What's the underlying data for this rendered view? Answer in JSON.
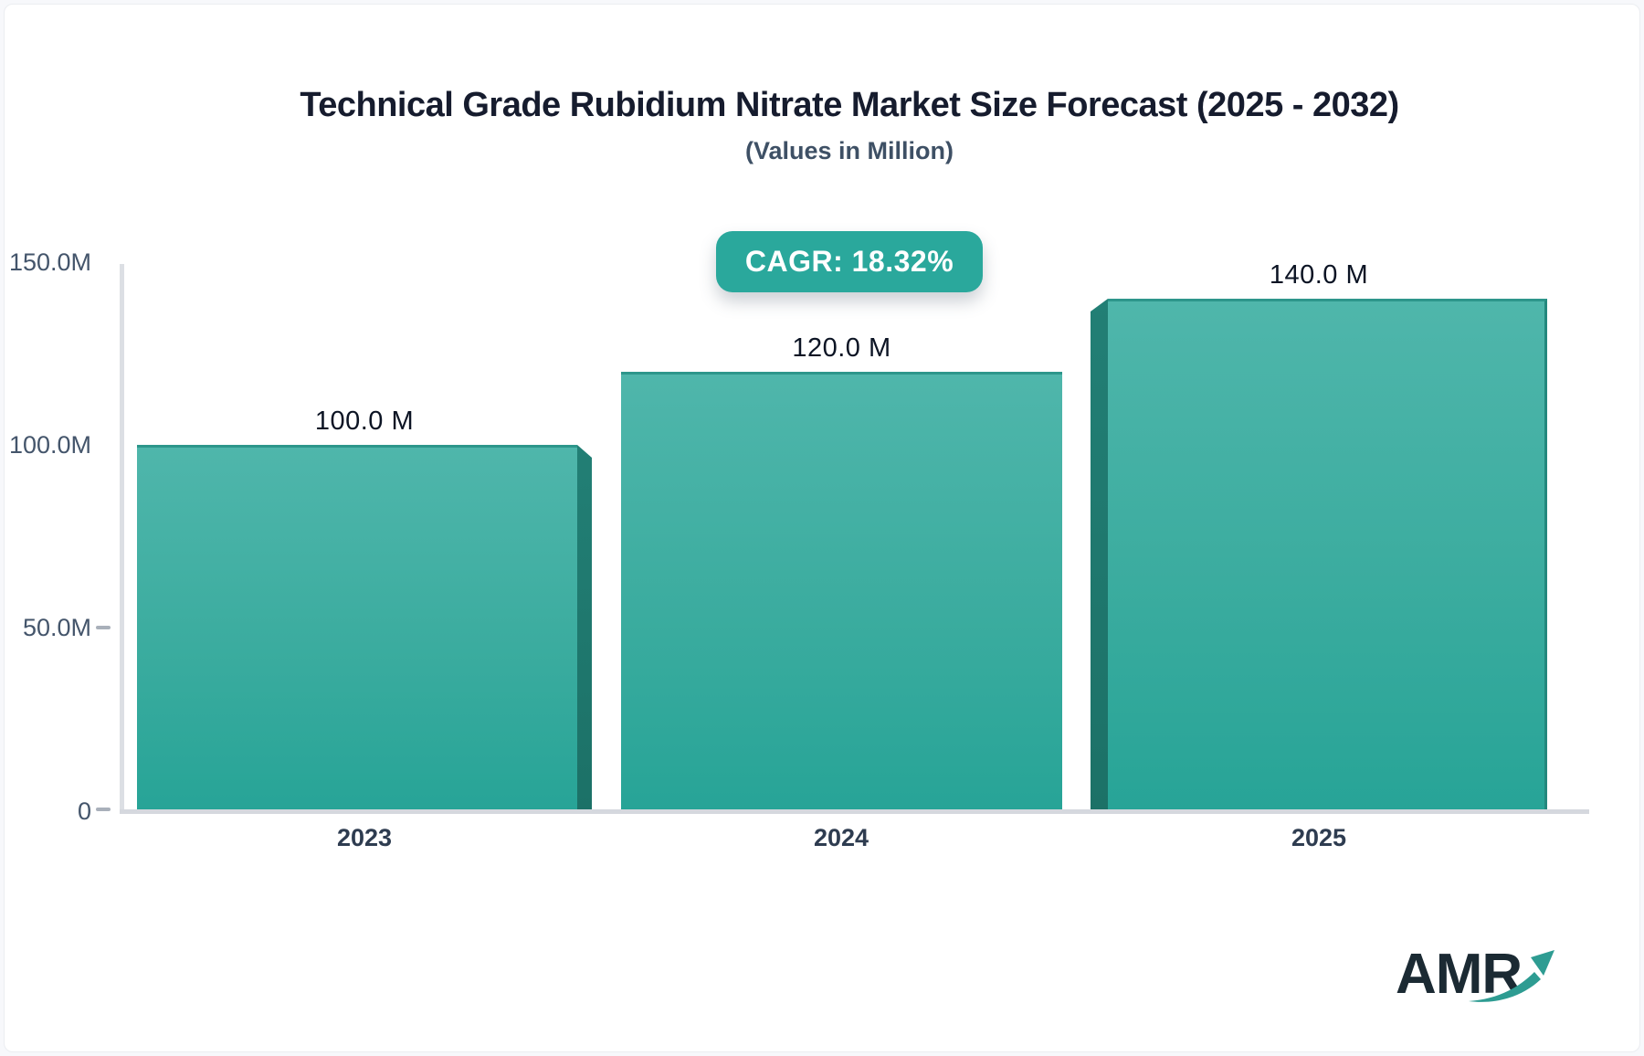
{
  "colors": {
    "accent_teal": "#2AA89C",
    "axis_gray": "#D5D8DE",
    "text_dark": "#161C2E",
    "text_slate": "#3E5065"
  },
  "chart_data": {
    "type": "bar",
    "title": "Technical Grade Rubidium Nitrate Market Size Forecast (2025 - 2032)",
    "subtitle": "(Values in Million)",
    "annotation": "CAGR: 18.32%",
    "categories": [
      "2023",
      "2024",
      "2025"
    ],
    "values": [
      100.0,
      120.0,
      140.0
    ],
    "value_labels": [
      "100.0 M",
      "120.0 M",
      "140.0 M"
    ],
    "unit": "Million",
    "ylim": [
      0,
      150
    ],
    "yticks": [
      {
        "value": 150,
        "label": "150.0M"
      },
      {
        "value": 100,
        "label": "100.0M"
      },
      {
        "value": 50,
        "label": "50.0M"
      },
      {
        "value": 0,
        "label": "0"
      }
    ],
    "grid": false,
    "legend": false,
    "bar_style": {
      "face_top": "#4FB6AB",
      "face_bottom": "#27A497",
      "side_face": "#1F7C72",
      "top_edge": "#2D968B"
    }
  },
  "logo": {
    "text": "AMR",
    "text_color": "#1B2A33",
    "arrow_color": "#2E9C92"
  }
}
